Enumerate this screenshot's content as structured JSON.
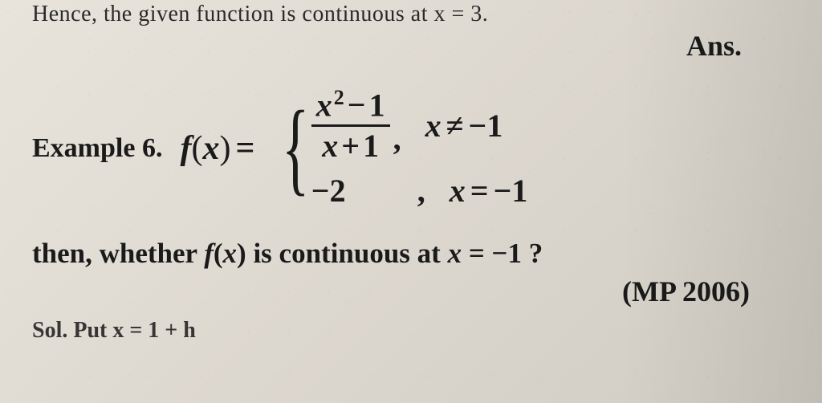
{
  "page": {
    "top_partial_text": "Hence, the given function is continuous at x = 3.",
    "answer_marker": "Ans.",
    "bottom_partial_text": "Sol. Put x = 1 + h"
  },
  "example": {
    "label": "Example 6.",
    "function_name": "f",
    "variable": "x",
    "equals": "=",
    "cases": [
      {
        "numerator_var": "x",
        "numerator_exp": "2",
        "numerator_op": "−",
        "numerator_const": "1",
        "denominator_var": "x",
        "denominator_op": "+",
        "denominator_const": "1",
        "condition_var": "x",
        "condition_op": "≠",
        "condition_val": "−1"
      },
      {
        "value": "−2",
        "condition_var": "x",
        "condition_op": "=",
        "condition_val": "−1"
      }
    ]
  },
  "question": {
    "prefix": "then, whether ",
    "func": "f",
    "var": "x",
    "middle": " is continuous at ",
    "cond_var": "x",
    "cond_op": " = ",
    "cond_val": "−1",
    "suffix": " ?"
  },
  "source": {
    "text": "(MP 2006)"
  },
  "style": {
    "text_color": "#1a1a1a",
    "background": "#e0dcd3"
  }
}
